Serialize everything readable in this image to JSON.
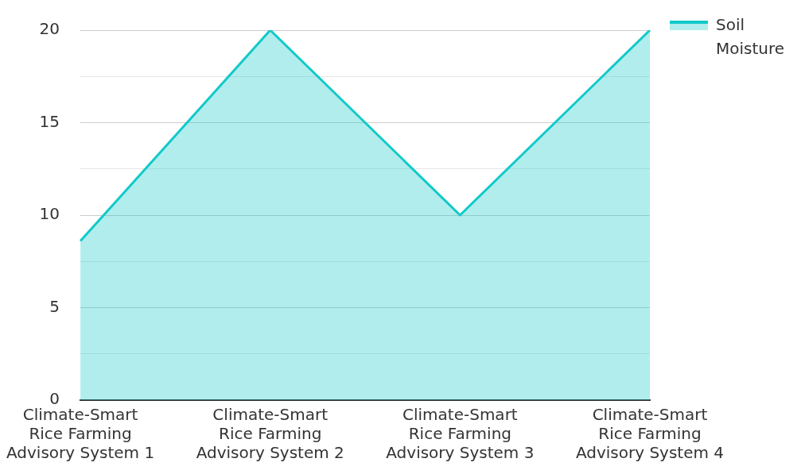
{
  "chart_data": {
    "type": "area",
    "categories": [
      "Climate-Smart Rice Farming Advisory System 1",
      "Climate-Smart Rice Farming Advisory System 2",
      "Climate-Smart Rice Farming Advisory System 3",
      "Climate-Smart Rice Farming Advisory System 4"
    ],
    "series": [
      {
        "name": "Soil Moisture",
        "color": "#12c9c9",
        "values": [
          8.6,
          20,
          10,
          20
        ]
      }
    ],
    "ylim": [
      0,
      20
    ],
    "yticks": [
      0,
      {
        "value": 2.5,
        "label": null
      },
      5,
      {
        "value": 7.5,
        "label": null
      },
      10,
      {
        "value": 12.5,
        "label": null
      },
      15,
      {
        "value": 17.5,
        "label": null
      },
      20
    ],
    "grid": "y",
    "legend": "top right",
    "marker": "none",
    "line_style": "solid"
  }
}
